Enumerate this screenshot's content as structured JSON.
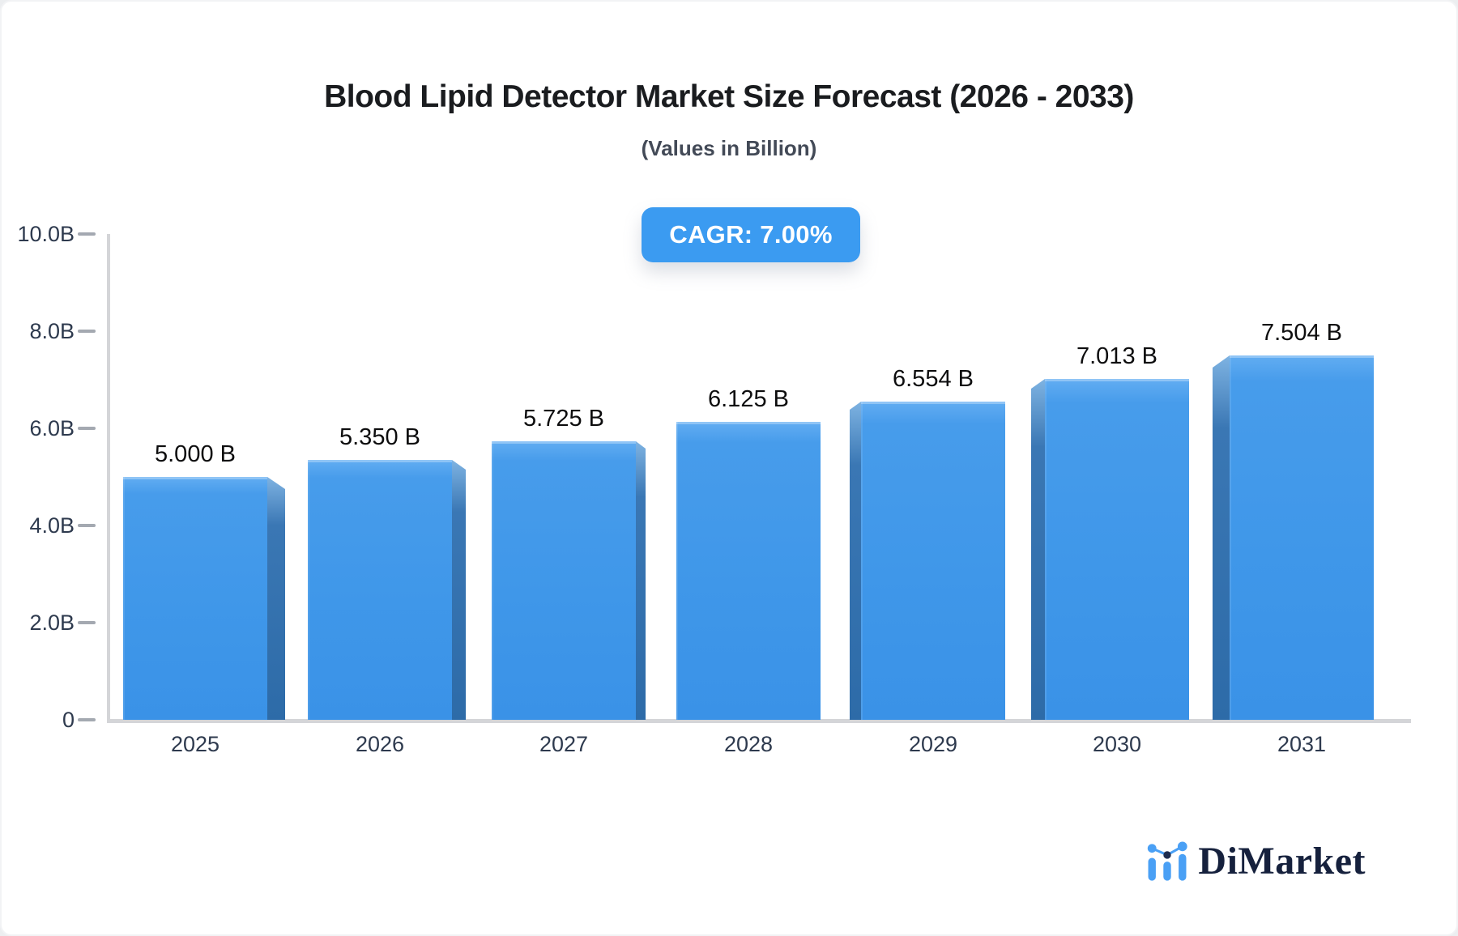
{
  "header": {
    "title": "Blood Lipid Detector Market Size Forecast (2026 - 2033)",
    "subtitle": "(Values in Billion)"
  },
  "badge": {
    "label": "CAGR: 7.00%",
    "bg_color": "#3b9bf1",
    "text_color": "#ffffff"
  },
  "chart_data": {
    "type": "bar",
    "style": "3d-perspective",
    "categories": [
      "2025",
      "2026",
      "2027",
      "2028",
      "2029",
      "2030",
      "2031"
    ],
    "values": [
      5.0,
      5.35,
      5.725,
      6.125,
      6.554,
      7.013,
      7.504
    ],
    "value_labels": [
      "5.000 B",
      "5.350 B",
      "5.725 B",
      "6.125 B",
      "6.554 B",
      "7.013 B",
      "7.504 B"
    ],
    "y_ticks": [
      "10.0B",
      "8.0B",
      "6.0B",
      "4.0B",
      "2.0B",
      "0"
    ],
    "ylim": [
      0,
      10
    ],
    "grid": false,
    "legend": "none",
    "bar_face_color": "#3f97e9",
    "bar_side_color": "#2d6ba8",
    "axis_color": "#d4d5d8"
  },
  "footer": {
    "brand": "DiMarket",
    "brand_color": "#16213d",
    "icon": "mini-bar-chart-icon",
    "icon_color": "#4aa0f5"
  }
}
